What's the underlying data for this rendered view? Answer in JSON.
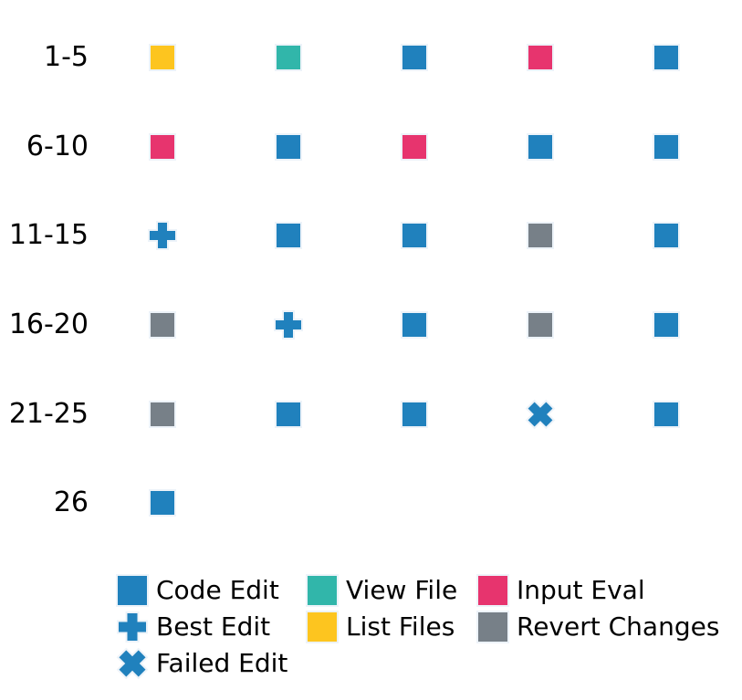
{
  "figure": {
    "background": "#ffffff",
    "text_color": "#000000"
  },
  "chart_data": {
    "type": "scatter",
    "description": "Categorical marker grid showing agent actions per step range; axes off, no gridlines, legend at bottom in 3 columns",
    "title": "",
    "xlabel": "",
    "ylabel": "",
    "slots_per_row": 5,
    "marker_edge_color": "#edf3f9",
    "colors": {
      "code_edit": "#2081bd",
      "view_file": "#31b6aa",
      "input_eval": "#e7346e",
      "list_files": "#fdc51f",
      "revert_changes": "#778088",
      "best_edit": "#2081bd",
      "failed_edit": "#2081bd"
    },
    "marker_map": {
      "Code Edit": {
        "shape": "square",
        "color": "#2081bd"
      },
      "View File": {
        "shape": "square",
        "color": "#31b6aa"
      },
      "Input Eval": {
        "shape": "square",
        "color": "#e7346e"
      },
      "List Files": {
        "shape": "square",
        "color": "#fdc51f"
      },
      "Revert Changes": {
        "shape": "square",
        "color": "#778088"
      },
      "Best Edit": {
        "shape": "plus",
        "color": "#2081bd"
      },
      "Failed Edit": {
        "shape": "x",
        "color": "#2081bd"
      }
    },
    "rows": [
      {
        "label": "1-5",
        "actions": [
          "List Files",
          "View File",
          "Code Edit",
          "Input Eval",
          "Code Edit"
        ]
      },
      {
        "label": "6-10",
        "actions": [
          "Input Eval",
          "Code Edit",
          "Input Eval",
          "Code Edit",
          "Code Edit"
        ]
      },
      {
        "label": "11-15",
        "actions": [
          "Best Edit",
          "Code Edit",
          "Code Edit",
          "Revert Changes",
          "Code Edit"
        ]
      },
      {
        "label": "16-20",
        "actions": [
          "Revert Changes",
          "Best Edit",
          "Code Edit",
          "Revert Changes",
          "Code Edit"
        ]
      },
      {
        "label": "21-25",
        "actions": [
          "Revert Changes",
          "Code Edit",
          "Code Edit",
          "Failed Edit",
          "Code Edit"
        ]
      },
      {
        "label": "26",
        "actions": [
          "Code Edit"
        ]
      }
    ],
    "legend_position": "bottom",
    "legend_columns": 3,
    "legend_rows": [
      [
        {
          "label": "Code Edit",
          "shape": "square",
          "color": "#2081bd"
        },
        {
          "label": "View File",
          "shape": "square",
          "color": "#31b6aa"
        },
        {
          "label": "Input Eval",
          "shape": "square",
          "color": "#e7346e"
        }
      ],
      [
        {
          "label": "Best Edit",
          "shape": "plus",
          "color": "#2081bd"
        },
        {
          "label": "List Files",
          "shape": "square",
          "color": "#fdc51f"
        },
        {
          "label": "Revert Changes",
          "shape": "square",
          "color": "#778088"
        }
      ],
      [
        {
          "label": "Failed Edit",
          "shape": "x",
          "color": "#2081bd"
        }
      ]
    ]
  }
}
